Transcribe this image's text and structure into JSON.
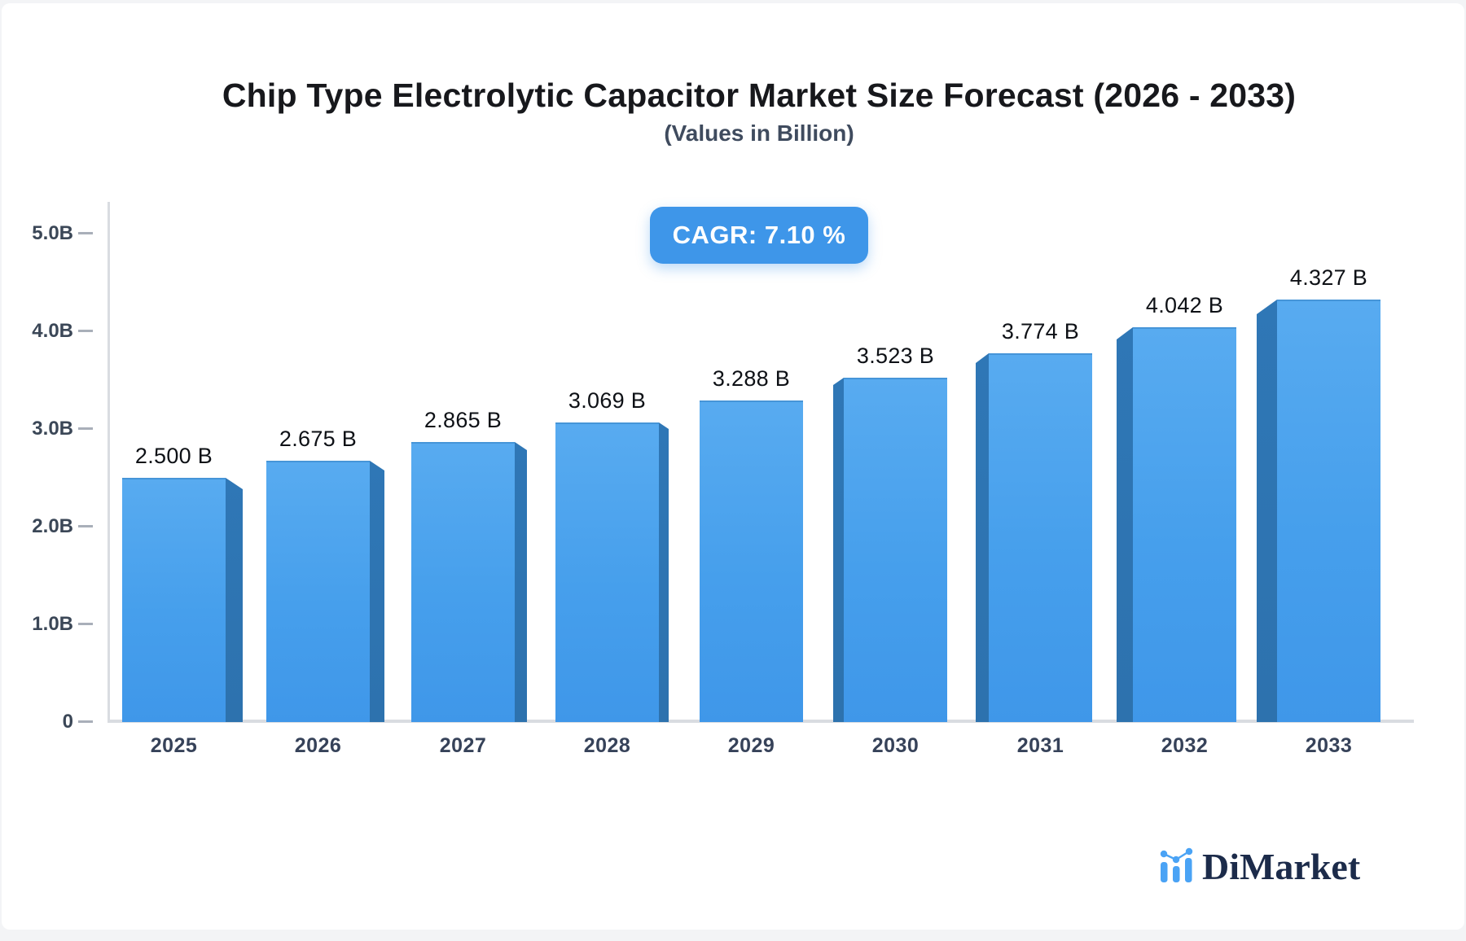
{
  "chart_data": {
    "type": "bar",
    "style": "3d-perspective-bars",
    "title": "Chip Type Electrolytic Capacitor Market Size Forecast (2026 - 2033)",
    "subtitle": "(Values in Billion)",
    "cagr_badge": "CAGR: 7.10 %",
    "unit": "Billion",
    "categories": [
      "2025",
      "2026",
      "2027",
      "2028",
      "2029",
      "2030",
      "2031",
      "2032",
      "2033"
    ],
    "values": [
      2.5,
      2.675,
      2.865,
      3.069,
      3.288,
      3.523,
      3.774,
      4.042,
      4.327
    ],
    "value_labels": [
      "2.500 B",
      "2.675 B",
      "2.865 B",
      "3.069 B",
      "3.288 B",
      "3.523 B",
      "3.774 B",
      "4.042 B",
      "4.327 B"
    ],
    "y_ticks": [
      {
        "label": "5.0B",
        "value": 5.0
      },
      {
        "label": "4.0B",
        "value": 4.0
      },
      {
        "label": "3.0B",
        "value": 3.0
      },
      {
        "label": "2.0B",
        "value": 2.0
      },
      {
        "label": "1.0B",
        "value": 1.0
      },
      {
        "label": "0",
        "value": 0.0
      }
    ],
    "ylim": [
      0,
      5
    ],
    "grid": false,
    "legend": false,
    "bar_face_color": "#469FEC",
    "bar_side_color": "#2D73AF"
  },
  "badge": {
    "label": "CAGR: 7.10 %",
    "bg_color": "#3E96E9",
    "text_color": "#FFFFFF"
  },
  "brand": {
    "name": "DiMarket",
    "icon": "mini-bar-chart-logo-icon",
    "text_color": "#1C2B4A",
    "accent_color": "#4AA3F5"
  },
  "colors": {
    "page_bg": "#F3F4F6",
    "card_bg": "#FFFFFF",
    "axis_line": "#D9DCE1",
    "tick_dash": "#A9AFB9",
    "tick_text": "#3B4757",
    "year_text": "#364259",
    "value_text": "#0E1116",
    "title_text": "#17181C",
    "subtitle_text": "#3F4B5E"
  }
}
